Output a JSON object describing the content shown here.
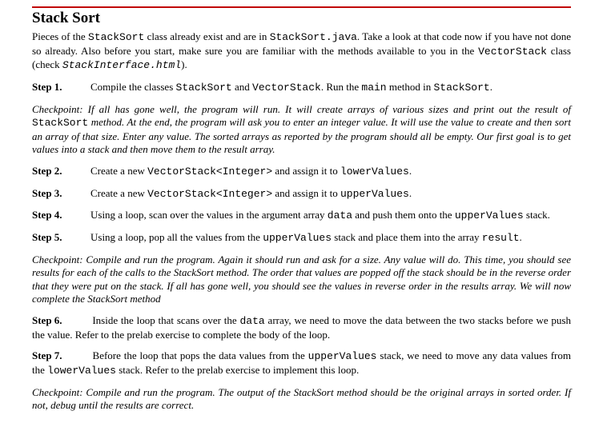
{
  "title": "Stack Sort",
  "intro": {
    "p1a": "Pieces of the ",
    "c1": "StackSort",
    "p1b": " class already exist and are in ",
    "c2": "StackSort.java",
    "p1c": ".  Take a look at that code now if you have not done so already.  Also before you start, make sure you are familiar with the methods available to you in the ",
    "c3": "VectorStack",
    "p1d": " class (check ",
    "c4": "StackInterface.html",
    "p1e": ")."
  },
  "step1": {
    "label": "Step 1.",
    "t1": "Compile the classes ",
    "c1": "StackSort",
    "t2": " and ",
    "c2": "VectorStack",
    "t3": ".  Run the ",
    "c3": "main",
    "t4": " method in ",
    "c4": "StackSort",
    "t5": "."
  },
  "cp1": {
    "t1": "Checkpoint: If all has gone well, the program will run.  It will create arrays of various sizes and print out the result of ",
    "c1": "StackSort",
    "t2": " method.  At the end, the program will ask you to enter an integer value.  It will use the value to create and then sort an array of that size.  Enter any value.  The sorted arrays as reported by the program should all be empty.  Our first goal is to get values into a stack and then move them to the result array."
  },
  "step2": {
    "label": "Step 2.",
    "t1": "Create a new ",
    "c1": "VectorStack<Integer>",
    "t2": " and assign it to ",
    "c2": "lowerValues",
    "t3": "."
  },
  "step3": {
    "label": "Step 3.",
    "t1": "Create a new ",
    "c1": "VectorStack<Integer>",
    "t2": " and assign it to ",
    "c2": "upperValues",
    "t3": "."
  },
  "step4": {
    "label": "Step 4.",
    "t1": "Using a loop, scan over the values in the argument array ",
    "c1": "data",
    "t2": " and push them onto the ",
    "c2": "upperValues",
    "t3": " stack."
  },
  "step5": {
    "label": "Step 5.",
    "t1": "Using a loop, pop all the values from the ",
    "c1": "upperValues",
    "t2": " stack and place them into the array ",
    "c2": "result",
    "t3": "."
  },
  "cp2": "Checkpoint: Compile and run the program.  Again it should run and ask for a size.  Any value will do.  This time, you should see results for each of the calls to the StackSort method.  The order that values are popped off the stack should be in the reverse order that they were put on the stack.  If all has gone well, you should see the values in reverse order in the results array.  We will now complete the StackSort method",
  "step6": {
    "label": "Step 6.",
    "t1": "Inside the loop that scans over the ",
    "c1": "data",
    "t2": " array, we need to move the data between the two stacks before we push the value.  Refer to the prelab exercise to complete the body of the loop."
  },
  "step7": {
    "label": "Step 7.",
    "t1": "Before the loop that pops the data values from the ",
    "c1": "upperValues",
    "t2": " stack, we need to move any data values from the ",
    "c2": "lowerValues",
    "t3": " stack.  Refer to the prelab exercise to implement this loop."
  },
  "cp3": "Checkpoint: Compile and run the program.  The output of the StackSort method should be the original arrays in sorted order.  If not, debug until the results are correct."
}
